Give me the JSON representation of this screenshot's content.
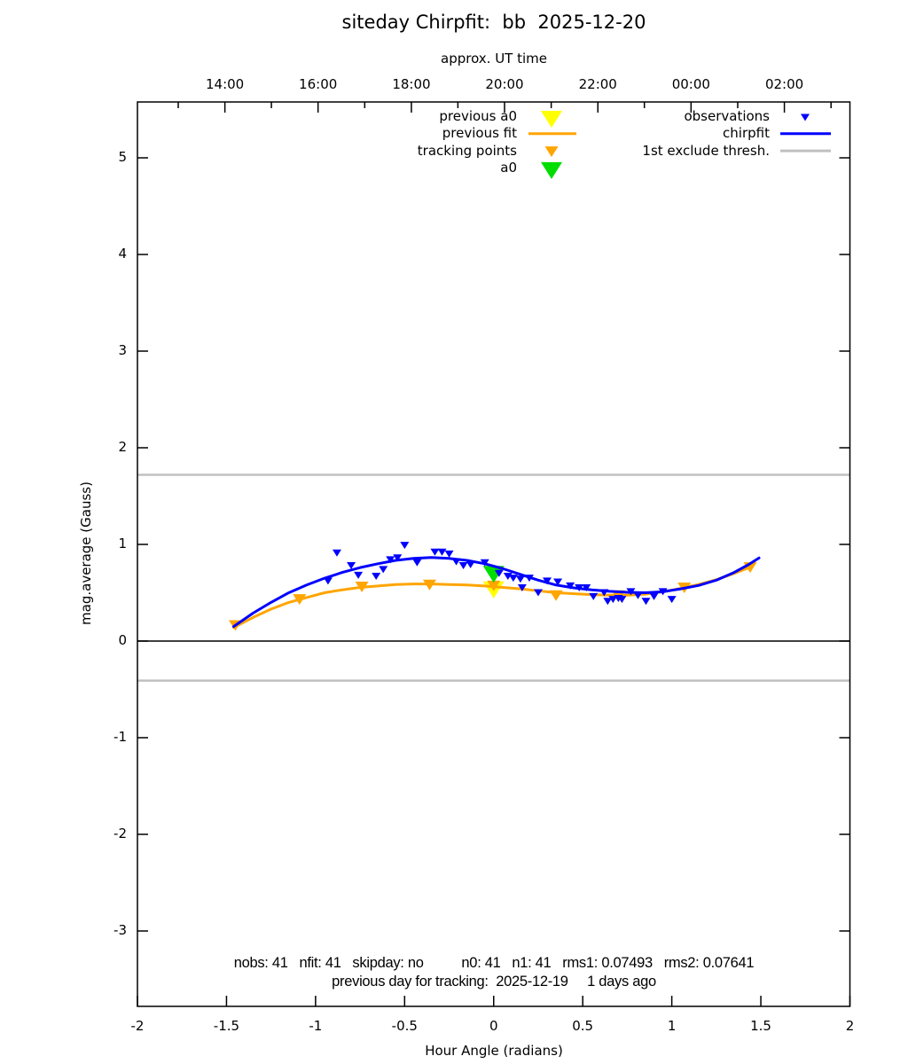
{
  "title": "siteday Chirpfit:  bb  2025-12-20",
  "stats": {
    "line1": "nobs: 41   nfit: 41   skipday: no          n0: 41   n1: 41   rms1: 0.07493   rms2: 0.07641",
    "line2": "previous day for tracking:  2025-12-19     1 days ago"
  },
  "colors": {
    "blue": "#0000ff",
    "orange": "#ffa500",
    "yellow": "#ffff00",
    "green": "#00dd00",
    "gray": "#c0c0c0",
    "frame": "#000000"
  },
  "legend": {
    "left": [
      {
        "label": "previous a0",
        "marker": "triangle",
        "color": "#ffff00",
        "size": "large"
      },
      {
        "label": "previous fit",
        "marker": "line",
        "color": "#ffa500"
      },
      {
        "label": "tracking points",
        "marker": "triangle",
        "color": "#ffa500",
        "size": "medium"
      },
      {
        "label": "a0",
        "marker": "triangle",
        "color": "#00dd00",
        "size": "large"
      }
    ],
    "right": [
      {
        "label": "observations",
        "marker": "triangle",
        "color": "#0000ff",
        "size": "small"
      },
      {
        "label": "chirpfit",
        "marker": "line",
        "color": "#0000ff"
      },
      {
        "label": "1st exclude thresh.",
        "marker": "line",
        "color": "#c0c0c0"
      }
    ]
  },
  "chart_data": {
    "type": "line+scatter",
    "title": "siteday Chirpfit:  bb  2025-12-20",
    "xlabel": "Hour Angle (radians)",
    "ylabel": "mag.average (Gauss)",
    "x2label": "approx. UT time",
    "xlim": [
      -2,
      2
    ],
    "ylim": [
      -3.78,
      5.578
    ],
    "x_ticks": [
      -2,
      -1.5,
      -1,
      -0.5,
      0,
      0.5,
      1,
      1.5,
      2
    ],
    "y_ticks": [
      5,
      4,
      3,
      2,
      1,
      0,
      -1,
      -2,
      -3
    ],
    "x2_ticks": [
      {
        "label": "14:00",
        "ha": -1.509
      },
      {
        "label": "16:00",
        "ha": -0.986
      },
      {
        "label": "18:00",
        "ha": -0.462
      },
      {
        "label": "20:00",
        "ha": 0.061
      },
      {
        "label": "22:00",
        "ha": 0.585
      },
      {
        "label": "00:00",
        "ha": 1.108
      },
      {
        "label": "02:00",
        "ha": 1.632
      }
    ],
    "x2_minor_ticks_ha": [
      -1.771,
      -1.248,
      -0.724,
      -0.201,
      0.323,
      0.846,
      1.37,
      1.894
    ],
    "zero_line_y": 0,
    "exclude_thresholds": [
      1.72,
      -0.41
    ],
    "series": [
      {
        "name": "previous a0",
        "type": "scatter",
        "marker": "triangle-down",
        "size": "large",
        "color": "#ffff00",
        "points": [
          [
            0.0,
            0.53
          ]
        ]
      },
      {
        "name": "previous fit",
        "type": "line",
        "color": "#ffa500",
        "points": [
          [
            -1.46,
            0.14
          ],
          [
            -1.35,
            0.245
          ],
          [
            -1.25,
            0.33
          ],
          [
            -1.15,
            0.4
          ],
          [
            -1.05,
            0.45
          ],
          [
            -0.95,
            0.5
          ],
          [
            -0.85,
            0.53
          ],
          [
            -0.75,
            0.555
          ],
          [
            -0.65,
            0.57
          ],
          [
            -0.55,
            0.585
          ],
          [
            -0.45,
            0.59
          ],
          [
            -0.35,
            0.59
          ],
          [
            -0.25,
            0.585
          ],
          [
            -0.15,
            0.58
          ],
          [
            -0.05,
            0.57
          ],
          [
            0.05,
            0.555
          ],
          [
            0.15,
            0.54
          ],
          [
            0.25,
            0.52
          ],
          [
            0.35,
            0.5
          ],
          [
            0.45,
            0.49
          ],
          [
            0.55,
            0.48
          ],
          [
            0.65,
            0.475
          ],
          [
            0.75,
            0.475
          ],
          [
            0.85,
            0.485
          ],
          [
            0.95,
            0.51
          ],
          [
            1.05,
            0.545
          ],
          [
            1.15,
            0.585
          ],
          [
            1.25,
            0.635
          ],
          [
            1.35,
            0.7
          ],
          [
            1.44,
            0.765
          ]
        ]
      },
      {
        "name": "tracking points",
        "type": "scatter",
        "marker": "triangle-down",
        "size": "medium",
        "color": "#ffa500",
        "points": [
          [
            -1.45,
            0.16
          ],
          [
            -1.09,
            0.43
          ],
          [
            -0.74,
            0.56
          ],
          [
            -0.36,
            0.58
          ],
          [
            0.0,
            0.57
          ],
          [
            0.35,
            0.47
          ],
          [
            0.7,
            0.47
          ],
          [
            1.07,
            0.55
          ],
          [
            1.44,
            0.76
          ]
        ]
      },
      {
        "name": "a0",
        "type": "scatter",
        "marker": "triangle-down",
        "size": "large",
        "color": "#00dd00",
        "points": [
          [
            0.0,
            0.69
          ]
        ]
      },
      {
        "name": "observations",
        "type": "scatter",
        "marker": "triangle-down",
        "size": "small",
        "color": "#0000ff",
        "points": [
          [
            -0.93,
            0.62
          ],
          [
            -0.88,
            0.91
          ],
          [
            -0.8,
            0.78
          ],
          [
            -0.76,
            0.68
          ],
          [
            -0.66,
            0.67
          ],
          [
            -0.62,
            0.74
          ],
          [
            -0.58,
            0.84
          ],
          [
            -0.54,
            0.86
          ],
          [
            -0.5,
            0.99
          ],
          [
            -0.43,
            0.81
          ],
          [
            -0.33,
            0.92
          ],
          [
            -0.29,
            0.92
          ],
          [
            -0.25,
            0.9
          ],
          [
            -0.21,
            0.82
          ],
          [
            -0.17,
            0.78
          ],
          [
            -0.13,
            0.79
          ],
          [
            -0.05,
            0.81
          ],
          [
            0.03,
            0.7
          ],
          [
            0.08,
            0.67
          ],
          [
            0.11,
            0.65
          ],
          [
            0.15,
            0.64
          ],
          [
            0.16,
            0.55
          ],
          [
            0.2,
            0.65
          ],
          [
            0.25,
            0.5
          ],
          [
            0.3,
            0.62
          ],
          [
            0.36,
            0.61
          ],
          [
            0.43,
            0.57
          ],
          [
            0.48,
            0.55
          ],
          [
            0.52,
            0.55
          ],
          [
            0.56,
            0.46
          ],
          [
            0.62,
            0.5
          ],
          [
            0.64,
            0.41
          ],
          [
            0.67,
            0.43
          ],
          [
            0.7,
            0.44
          ],
          [
            0.72,
            0.43
          ],
          [
            0.77,
            0.51
          ],
          [
            0.81,
            0.47
          ],
          [
            0.855,
            0.41
          ],
          [
            0.9,
            0.46
          ],
          [
            0.95,
            0.51
          ],
          [
            1.0,
            0.43
          ]
        ]
      },
      {
        "name": "chirpfit",
        "type": "line",
        "color": "#0000ff",
        "points": [
          [
            -1.46,
            0.15
          ],
          [
            -1.35,
            0.29
          ],
          [
            -1.25,
            0.4
          ],
          [
            -1.15,
            0.5
          ],
          [
            -1.05,
            0.58
          ],
          [
            -0.95,
            0.65
          ],
          [
            -0.85,
            0.71
          ],
          [
            -0.75,
            0.76
          ],
          [
            -0.65,
            0.8
          ],
          [
            -0.55,
            0.835
          ],
          [
            -0.45,
            0.855
          ],
          [
            -0.35,
            0.865
          ],
          [
            -0.25,
            0.855
          ],
          [
            -0.15,
            0.835
          ],
          [
            -0.05,
            0.8
          ],
          [
            0.05,
            0.75
          ],
          [
            0.15,
            0.69
          ],
          [
            0.25,
            0.63
          ],
          [
            0.35,
            0.58
          ],
          [
            0.45,
            0.55
          ],
          [
            0.55,
            0.53
          ],
          [
            0.65,
            0.515
          ],
          [
            0.75,
            0.505
          ],
          [
            0.85,
            0.5
          ],
          [
            0.95,
            0.51
          ],
          [
            1.05,
            0.54
          ],
          [
            1.15,
            0.575
          ],
          [
            1.25,
            0.63
          ],
          [
            1.35,
            0.71
          ],
          [
            1.43,
            0.79
          ],
          [
            1.49,
            0.86
          ]
        ]
      }
    ]
  }
}
